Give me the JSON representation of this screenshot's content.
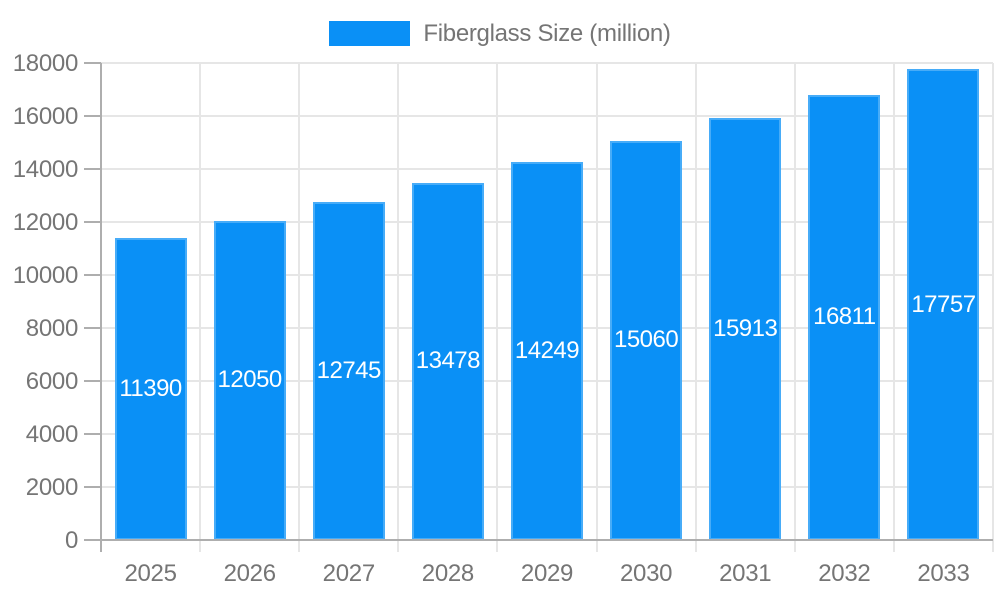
{
  "legend": {
    "label": "Fiberglass Size (million)"
  },
  "chart_data": {
    "type": "bar",
    "title": "Fiberglass Size (million)",
    "categories": [
      "2025",
      "2026",
      "2027",
      "2028",
      "2029",
      "2030",
      "2031",
      "2032",
      "2033"
    ],
    "values": [
      11390,
      12050,
      12745,
      13478,
      14249,
      15060,
      15913,
      16811,
      17757
    ],
    "xlabel": "",
    "ylabel": "",
    "ylim": [
      0,
      18000
    ],
    "ytick_step": 2000,
    "grid": true,
    "legend_position": "top",
    "bar_label_position": "center-of-bar",
    "colors": {
      "bar": "#0a90f6",
      "bar_value_text": "#ffffff",
      "axis_text": "#757575",
      "grid_line": "#e6e6e6",
      "axis_line": "#aeaeae"
    }
  }
}
